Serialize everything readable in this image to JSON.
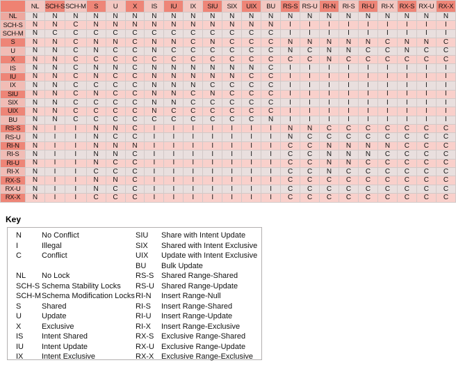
{
  "colors": {
    "header_dark": "#ee8577",
    "header_light": "#f3c7c1",
    "row_header_light": "#f1bcb5",
    "row_header_first": "#eda89f",
    "corner": "#ef8272",
    "row_pink": "#f9d0cb",
    "row_gray": "#e9dfde",
    "grid_line": "#d2c9c8",
    "key_border": "#b3b0b0",
    "text": "#111111"
  },
  "matrix": {
    "columns": [
      "NL",
      "SCH-S",
      "SCH-M",
      "S",
      "U",
      "X",
      "IS",
      "IU",
      "IX",
      "SIU",
      "SIX",
      "UIX",
      "BU",
      "RS-S",
      "RS-U",
      "RI-N",
      "RI-S",
      "RI-U",
      "RI-X",
      "RX-S",
      "RX-U",
      "RX-X"
    ],
    "rows": [
      {
        "label": "NL",
        "cells": "NNNNNNNNNNNNNNNNNNNNNN"
      },
      {
        "label": "SCH-S",
        "cells": "NNCNNNNNNNNNNIIIIIIIII"
      },
      {
        "label": "SCH-M",
        "cells": "NCCCCCCCCCCCCIIIIIIIII"
      },
      {
        "label": "S",
        "cells": "NNCNNCNNCNCCCNNNNNCNNC"
      },
      {
        "label": "U",
        "cells": "NNCNCCNCCCCCCNCNNCCNCC"
      },
      {
        "label": "X",
        "cells": "NNCCCCCCCCCCCCCNCCCCCC"
      },
      {
        "label": "IS",
        "cells": "NNCNNCNNNNNNCIIIIIIIII"
      },
      {
        "label": "IU",
        "cells": "NNCNCCNNNNNCCIIIIIIIII"
      },
      {
        "label": "IX",
        "cells": "NNCCCCNNNCCCCIIIIIIIII"
      },
      {
        "label": "SIU",
        "cells": "NNCNCCNNCNCCCIIIIIIIII"
      },
      {
        "label": "SIX",
        "cells": "NNCCCCNNCCCCCIIIIIIIII"
      },
      {
        "label": "UIX",
        "cells": "NNCCCCNCCCCCCIIIIIIIII"
      },
      {
        "label": "BU",
        "cells": "NNCCCCCCCCCCNIIIIIIIII"
      },
      {
        "label": "RS-S",
        "cells": "NIINNCIIIIIIINNCCCCCCC"
      },
      {
        "label": "RS-U",
        "cells": "NIINCCIIIIIIINCCCCCCCC"
      },
      {
        "label": "RI-N",
        "cells": "NIINNNIIIIIIICCNNNNCCC"
      },
      {
        "label": "RI-S",
        "cells": "NIINNCIIIIIIICCNNNCCCC"
      },
      {
        "label": "RI-U",
        "cells": "NIINCCIIIIIIICCNNCCCCC"
      },
      {
        "label": "RI-X",
        "cells": "NIICCCIIIIIIICCNCCCCCC"
      },
      {
        "label": "RX-S",
        "cells": "NIINNCIIIIIIICCCCCCCCC"
      },
      {
        "label": "RX-U",
        "cells": "NIINCCIIIIIIICCCCCCCCC"
      },
      {
        "label": "RX-X",
        "cells": "NIICCCIIIIIIICCCCCCCCC"
      }
    ]
  },
  "key": {
    "title": "Key",
    "left": [
      {
        "code": "N",
        "desc": "No Conflict"
      },
      {
        "code": "I",
        "desc": "Illegal"
      },
      {
        "code": "C",
        "desc": "Conflict"
      },
      {
        "code": "",
        "desc": ""
      },
      {
        "code": "NL",
        "desc": "No Lock"
      },
      {
        "code": "SCH-S",
        "desc": "Schema Stability Locks"
      },
      {
        "code": "SCH-M",
        "desc": "Schema Modification Locks"
      },
      {
        "code": "S",
        "desc": "Shared"
      },
      {
        "code": "U",
        "desc": "Update"
      },
      {
        "code": "X",
        "desc": "Exclusive"
      },
      {
        "code": "IS",
        "desc": "Intent Shared"
      },
      {
        "code": "IU",
        "desc": "Intent Update"
      },
      {
        "code": "IX",
        "desc": "Intent Exclusive"
      }
    ],
    "right": [
      {
        "code": "SIU",
        "desc": "Share with Intent Update"
      },
      {
        "code": "SIX",
        "desc": "Shared with Intent Exclusive"
      },
      {
        "code": "UIX",
        "desc": "Update with Intent Exclusive"
      },
      {
        "code": "BU",
        "desc": "Bulk Update"
      },
      {
        "code": "RS-S",
        "desc": "Shared Range-Shared"
      },
      {
        "code": "RS-U",
        "desc": "Shared Range-Update"
      },
      {
        "code": "RI-N",
        "desc": "Insert Range-Null"
      },
      {
        "code": "RI-S",
        "desc": "Insert Range-Shared"
      },
      {
        "code": "RI-U",
        "desc": "Insert Range-Update"
      },
      {
        "code": "RI-X",
        "desc": "Insert Range-Exclusive"
      },
      {
        "code": "RX-S",
        "desc": "Exclusive Range-Shared"
      },
      {
        "code": "RX-U",
        "desc": "Exclusive Range-Update"
      },
      {
        "code": "RX-X",
        "desc": "Exclusive Range-Exclusive"
      }
    ]
  }
}
